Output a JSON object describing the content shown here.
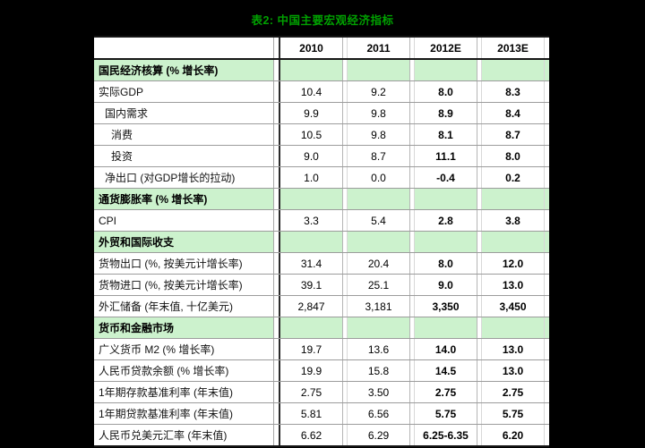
{
  "title": "表2: 中国主要宏观经济指标",
  "colors": {
    "page_background": "#000000",
    "title_green": "#00a000",
    "section_row_green": "#ccf2cd",
    "table_background": "#ffffff"
  },
  "table": {
    "columns": [
      "2010",
      "2011",
      "2012E",
      "2013E"
    ],
    "rows": [
      {
        "type": "section",
        "label": "国民经济核算 (% 增长率)"
      },
      {
        "type": "data",
        "indent": 0,
        "label": "实际GDP",
        "values": [
          "10.4",
          "9.2",
          "8.0",
          "8.3"
        ]
      },
      {
        "type": "data",
        "indent": 1,
        "label": "国内需求",
        "values": [
          "9.9",
          "9.8",
          "8.9",
          "8.4"
        ]
      },
      {
        "type": "data",
        "indent": 2,
        "label": "消费",
        "values": [
          "10.5",
          "9.8",
          "8.1",
          "8.7"
        ]
      },
      {
        "type": "data",
        "indent": 2,
        "label": "投资",
        "values": [
          "9.0",
          "8.7",
          "11.1",
          "8.0"
        ]
      },
      {
        "type": "data",
        "indent": 1,
        "label": "净出口 (对GDP增长的拉动)",
        "values": [
          "1.0",
          "0.0",
          "-0.4",
          "0.2"
        ]
      },
      {
        "type": "section",
        "label": "通货膨胀率 (% 增长率)"
      },
      {
        "type": "data",
        "indent": 0,
        "label": "CPI",
        "values": [
          "3.3",
          "5.4",
          "2.8",
          "3.8"
        ]
      },
      {
        "type": "section",
        "label": "外贸和国际收支"
      },
      {
        "type": "data",
        "indent": 0,
        "label": "货物出口 (%, 按美元计增长率)",
        "values": [
          "31.4",
          "20.4",
          "8.0",
          "12.0"
        ]
      },
      {
        "type": "data",
        "indent": 0,
        "label": "货物进口 (%, 按美元计增长率)",
        "values": [
          "39.1",
          "25.1",
          "9.0",
          "13.0"
        ]
      },
      {
        "type": "data",
        "indent": 0,
        "label": "外汇储备 (年末值, 十亿美元)",
        "values": [
          "2,847",
          "3,181",
          "3,350",
          "3,450"
        ]
      },
      {
        "type": "section",
        "label": "货币和金融市场"
      },
      {
        "type": "data",
        "indent": 0,
        "label": "广义货币 M2 (% 增长率)",
        "values": [
          "19.7",
          "13.6",
          "14.0",
          "13.0"
        ]
      },
      {
        "type": "data",
        "indent": 0,
        "label": "人民币贷款余额 (% 增长率)",
        "values": [
          "19.9",
          "15.8",
          "14.5",
          "13.0"
        ]
      },
      {
        "type": "data",
        "indent": 0,
        "label": "1年期存款基准利率 (年末值)",
        "values": [
          "2.75",
          "3.50",
          "2.75",
          "2.75"
        ]
      },
      {
        "type": "data",
        "indent": 0,
        "label": "1年期贷款基准利率 (年末值)",
        "values": [
          "5.81",
          "6.56",
          "5.75",
          "5.75"
        ]
      },
      {
        "type": "data",
        "indent": 0,
        "label": "人民币兑美元汇率 (年末值)",
        "values": [
          "6.62",
          "6.29",
          "6.25-6.35",
          "6.20"
        ]
      }
    ]
  }
}
